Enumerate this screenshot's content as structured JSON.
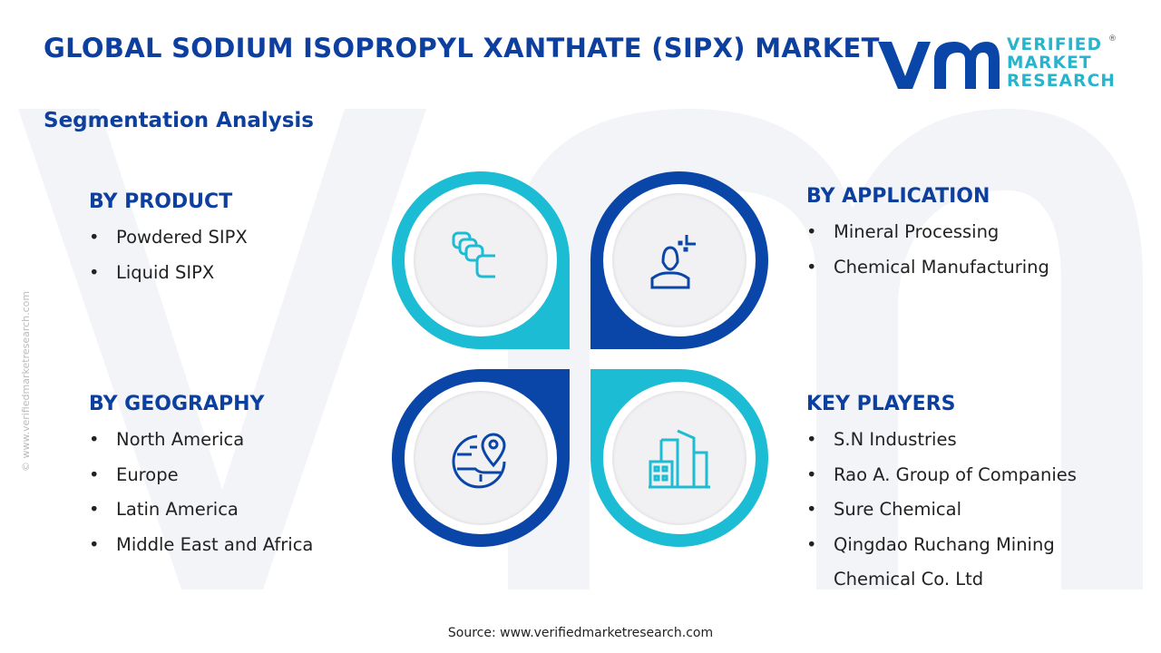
{
  "header": {
    "title": "GLOBAL SODIUM ISOPROPYL XANTHATE (SIPX) MARKET",
    "subtitle": "Segmentation Analysis"
  },
  "logo": {
    "line1": "VERIFIED",
    "line2": "MARKET",
    "line3": "RESEARCH",
    "reg": "®"
  },
  "side_text": "© www.verifiedmarketresearch.com",
  "colors": {
    "primary": "#0d3f9f",
    "accent": "#1bbcd4",
    "dark_blue": "#0a46a8"
  },
  "sections": {
    "product": {
      "heading": "BY PRODUCT",
      "items": [
        "Powdered SIPX",
        "Liquid SIPX"
      ],
      "icon": "layers-icon"
    },
    "application": {
      "heading": "BY APPLICATION",
      "items": [
        "Mineral Processing",
        "Chemical Manufacturing"
      ],
      "icon": "user-icon"
    },
    "geography": {
      "heading": "BY GEOGRAPHY",
      "items": [
        "North America",
        "Europe",
        "Latin America",
        "Middle East and Africa"
      ],
      "icon": "globe-pin-icon"
    },
    "players": {
      "heading": "KEY PLAYERS",
      "items": [
        "S.N Industries",
        "Rao A. Group of Companies",
        "Sure Chemical",
        "Qingdao Ruchang Mining Chemical Co. Ltd"
      ],
      "icon": "buildings-icon"
    }
  },
  "bullet": "•",
  "source": "Source: www.verifiedmarketresearch.com"
}
